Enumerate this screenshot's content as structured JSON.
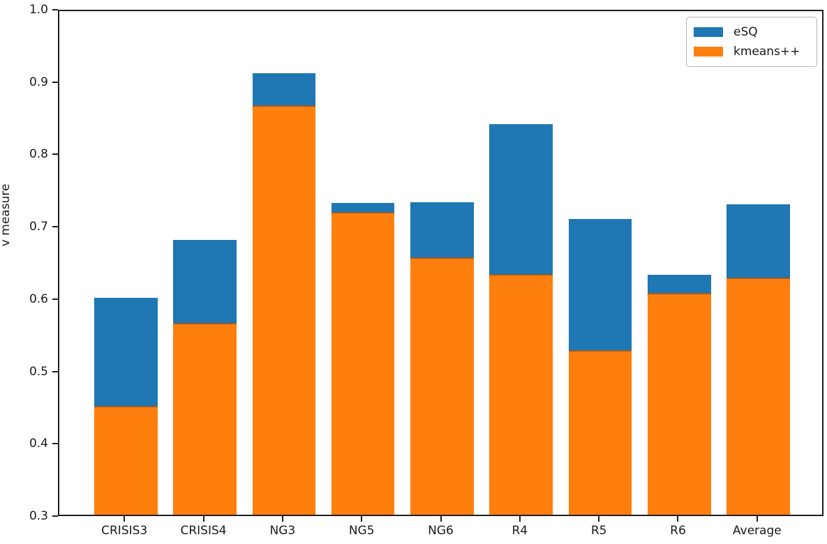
{
  "chart_data": {
    "type": "bar",
    "subtype": "overlapping",
    "title": "",
    "xlabel": "",
    "ylabel": "v measure",
    "categories": [
      "CRISIS3",
      "CRISIS4",
      "NG3",
      "NG5",
      "NG6",
      "R4",
      "R5",
      "R6",
      "Average"
    ],
    "series": [
      {
        "name": "eSQ",
        "color": "#1f77b4",
        "values": [
          0.6,
          0.68,
          0.91,
          0.731,
          0.732,
          0.84,
          0.709,
          0.632,
          0.729
        ]
      },
      {
        "name": "kmeans++",
        "color": "#ff7f0e",
        "values": [
          0.45,
          0.565,
          0.866,
          0.718,
          0.656,
          0.633,
          0.528,
          0.607,
          0.628
        ]
      }
    ],
    "ylim": [
      0.3,
      1.0
    ],
    "yticks": [
      "0.3",
      "0.4",
      "0.5",
      "0.6",
      "0.7",
      "0.8",
      "0.9",
      "1.0"
    ],
    "grid": false,
    "legend_position": "upper right",
    "draw_order_note": "eSQ drawn behind full-height; kmeans++ drawn in front"
  }
}
